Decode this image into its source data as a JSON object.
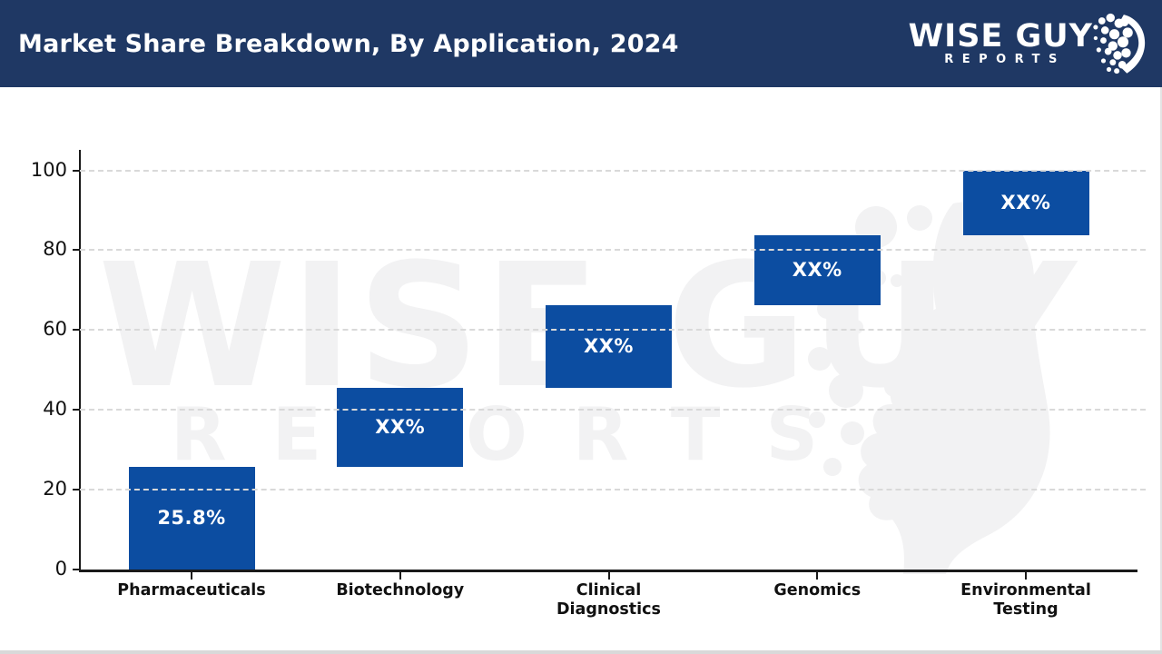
{
  "header": {
    "title": "Market Share Breakdown, By Application, 2024",
    "logo": {
      "line1": "WISE GUY",
      "line2": "REPORTS"
    }
  },
  "watermark": {
    "line1": "WISE GUY",
    "line2": "REPORTS"
  },
  "colors": {
    "header_bg": "#1f3864",
    "bar": "#0c4da1",
    "bar_label": "#ffffff",
    "grid": "#d9d9d9",
    "axis": "#1a1a1a",
    "watermark": "#f2f2f3"
  },
  "chart_data": {
    "type": "bar",
    "subtype": "waterfall-floating-segments",
    "title": "Market Share Breakdown, By Application, 2024",
    "categories": [
      {
        "name": "Pharmaceuticals",
        "lines": [
          "Pharmaceuticals"
        ]
      },
      {
        "name": "Biotechnology",
        "lines": [
          "Biotechnology"
        ]
      },
      {
        "name": "Clinical Diagnostics",
        "lines": [
          "Clinical",
          "Diagnostics"
        ]
      },
      {
        "name": "Genomics",
        "lines": [
          "Genomics"
        ]
      },
      {
        "name": "Environmental Testing",
        "lines": [
          "Environmental",
          "Testing"
        ]
      }
    ],
    "series": [
      {
        "name": "Market share (%)",
        "segments": [
          {
            "category": "Pharmaceuticals",
            "start": 0,
            "end": 25.8,
            "label": "25.8%"
          },
          {
            "category": "Biotechnology",
            "start": 25.8,
            "end": 45.5,
            "label": "XX%"
          },
          {
            "category": "Clinical Diagnostics",
            "start": 45.5,
            "end": 66.3,
            "label": "XX%"
          },
          {
            "category": "Genomics",
            "start": 66.3,
            "end": 83.8,
            "label": "XX%"
          },
          {
            "category": "Environmental Testing",
            "start": 83.8,
            "end": 100,
            "label": "XX%"
          }
        ]
      }
    ],
    "xlabel": "",
    "ylabel": "",
    "ylim": [
      0,
      100
    ],
    "yticks": [
      0,
      20,
      40,
      60,
      80,
      100
    ],
    "grid": {
      "horizontal": true,
      "style": "dashed",
      "drawn_above_bars": true
    },
    "legend": "none"
  }
}
